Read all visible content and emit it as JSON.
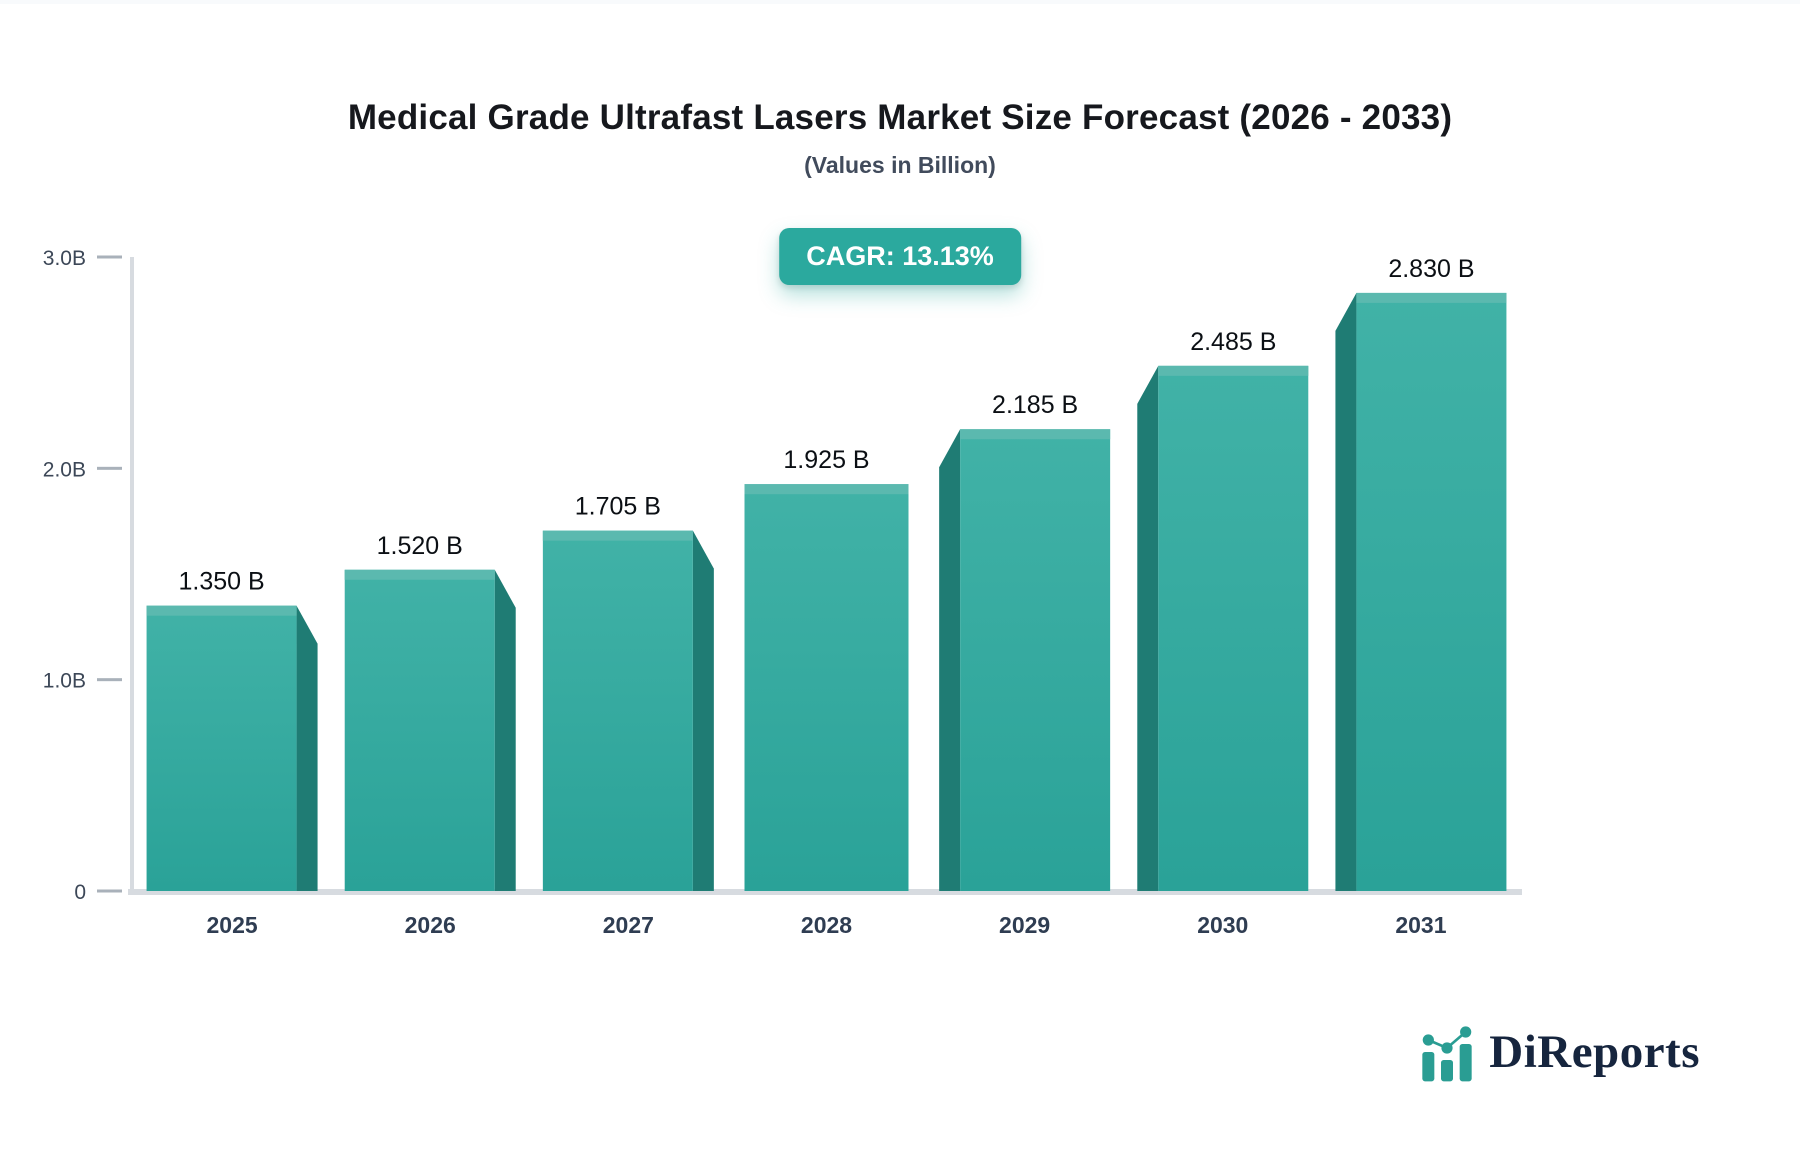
{
  "header": {
    "title": "Medical Grade Ultrafast Lasers Market Size Forecast (2026 - 2033)",
    "subtitle": "(Values in Billion)"
  },
  "badge": {
    "label": "CAGR: 13.13%",
    "color": "#2BA99E"
  },
  "chart_data": {
    "type": "bar",
    "title": "Medical Grade Ultrafast Lasers Market Size Forecast (2026 - 2033)",
    "subtitle": "(Values in Billion)",
    "categories": [
      "2025",
      "2026",
      "2027",
      "2028",
      "2029",
      "2030",
      "2031"
    ],
    "values": [
      1.35,
      1.52,
      1.705,
      1.925,
      2.185,
      2.485,
      2.83
    ],
    "bar_labels": [
      "1.350 B",
      "1.520 B",
      "1.705 B",
      "1.925 B",
      "2.185 B",
      "2.485 B",
      "2.830 B"
    ],
    "xlabel": "",
    "ylabel": "",
    "ylim": [
      0,
      3.0
    ],
    "yticks": [
      {
        "label": "3.0B",
        "value": 3.0
      },
      {
        "label": "2.0B",
        "value": 2.0
      },
      {
        "label": "1.0B",
        "value": 1.0
      },
      {
        "label": "0",
        "value": 0.0
      }
    ],
    "grid": false,
    "legend": false,
    "annotation": "CAGR: 13.13%",
    "colors": {
      "bar_body_top": "#41B2A7",
      "bar_body_bottom": "#2AA298",
      "bar_cap": "#5BB9AF",
      "bar_side": "#1F7C74",
      "axis": "#D7DBE0",
      "tick_dash": "#A9B1BA",
      "tick_text": "#3C4757",
      "category_text": "#2F3D52",
      "value_text": "#0B0F14"
    }
  },
  "logo": {
    "text": "DiReports",
    "color": "#16253E",
    "icon_color": "#2A9D93"
  }
}
